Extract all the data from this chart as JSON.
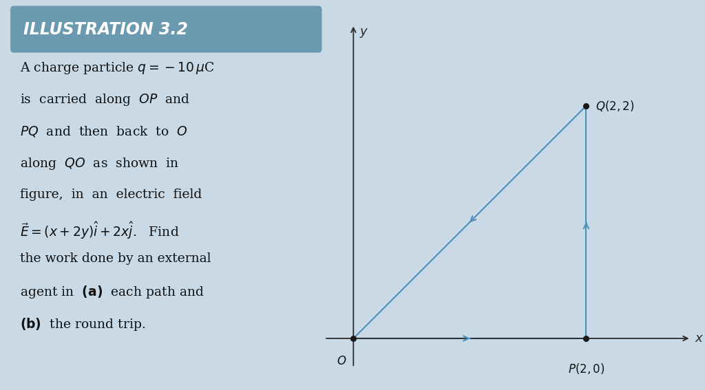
{
  "bg_color": "#c9d9e5",
  "header_bg": "#6b9ab0",
  "header_text": "ILLUSTRATION 3.2",
  "body_lines": [
    "A charge particle $q=-10\\,\\mu$C",
    "is  carried  along  $OP$  and",
    "$PQ$  and  then  back  to  $O$",
    "along  $QO$  as  shown  in",
    "figure,  in  an  electric  field",
    "$\\vec{E}=(x+2y)\\hat{i}+2x\\hat{j}$.   Find",
    "the work done by an external",
    "agent in  \\textbf{(a)}  each path and",
    "\\textbf{(b)}  the round trip."
  ],
  "arrow_color": "#4a90b8",
  "axis_color": "#2a2a2a",
  "dot_color": "#1a1a1a",
  "O": [
    0,
    0
  ],
  "P": [
    2,
    0
  ],
  "Q": [
    2,
    2
  ],
  "xlim": [
    -0.25,
    2.9
  ],
  "ylim": [
    -0.3,
    2.7
  ],
  "text_color": "#111111"
}
